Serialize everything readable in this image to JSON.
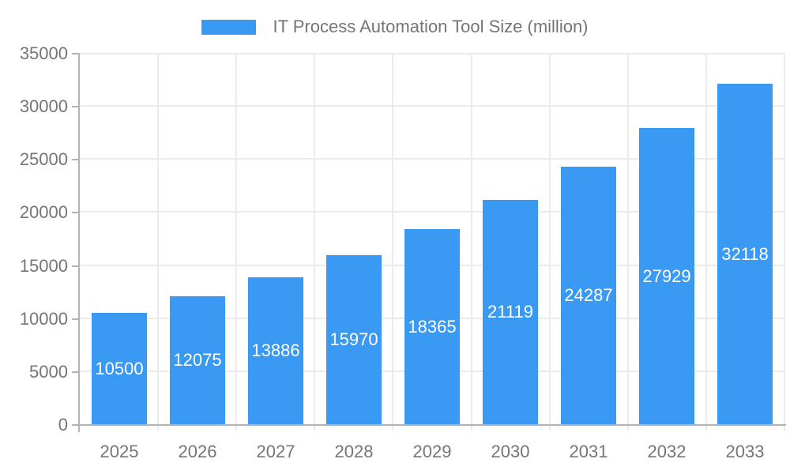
{
  "legend": {
    "label": "IT Process Automation Tool Size (million)"
  },
  "colors": {
    "bar": "#3A99F2",
    "axis": "#b3b3b3",
    "grid": "#ebebeb",
    "tick_text": "#757575",
    "value_text": "#ffffff"
  },
  "chart_data": {
    "type": "bar",
    "title": "IT Process Automation Tool Size (million)",
    "categories": [
      "2025",
      "2026",
      "2027",
      "2028",
      "2029",
      "2030",
      "2031",
      "2032",
      "2033"
    ],
    "values": [
      10500,
      12075,
      13886,
      15970,
      18365,
      21119,
      24287,
      27929,
      32118
    ],
    "xlabel": "",
    "ylabel": "",
    "ylim": [
      0,
      35000
    ],
    "yticks": [
      0,
      5000,
      10000,
      15000,
      20000,
      25000,
      30000,
      35000
    ],
    "grid": true,
    "legend_position": "top",
    "bar_labels": "inside-center-white"
  }
}
